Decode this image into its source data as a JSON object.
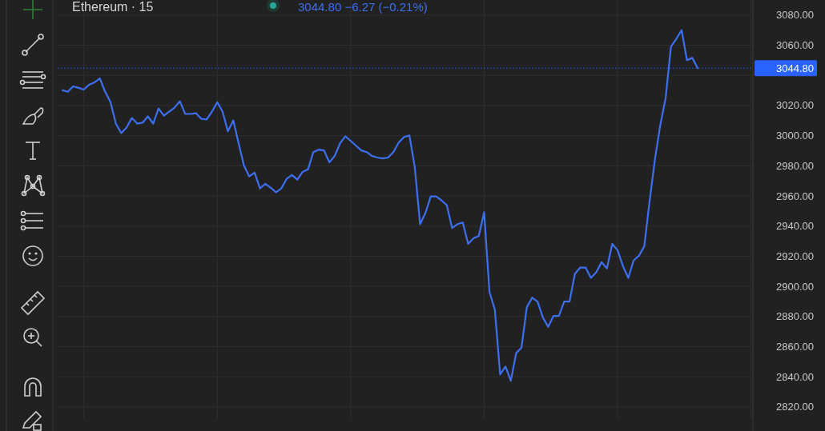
{
  "chart_data": {
    "type": "line",
    "title": "Ethereum · 15",
    "annotations": [
      "3044.80 −6.27 (−0.21%)"
    ],
    "categories": [
      null,
      null,
      null,
      null,
      null,
      null,
      null,
      null,
      null,
      null,
      null,
      null,
      null,
      null,
      null,
      null,
      null,
      null,
      null,
      null,
      null,
      null,
      null,
      null,
      null,
      null,
      null,
      null,
      null,
      null,
      null,
      null,
      null,
      null,
      null,
      null,
      null,
      null,
      null,
      null,
      null,
      null,
      null,
      null,
      null,
      null,
      null,
      null,
      null,
      null,
      null,
      null,
      null,
      null,
      null,
      null,
      null,
      null,
      null,
      null,
      null,
      null,
      null,
      null,
      null,
      null,
      null,
      null,
      null,
      null,
      null,
      null,
      null,
      null,
      null,
      null,
      null,
      null,
      null,
      null,
      null,
      null,
      null,
      null,
      null,
      null,
      null,
      null,
      null,
      null,
      null,
      null,
      null,
      null,
      null,
      null,
      null,
      null,
      null,
      null,
      null,
      null,
      null,
      null,
      null,
      null,
      null,
      null,
      null,
      null,
      null,
      null,
      null,
      null,
      null,
      null,
      null,
      null,
      null,
      null
    ],
    "series": [
      {
        "color": "#3d6ff0",
        "values": [
          3030.1,
          3029.1,
          3032.7,
          3031.7,
          3030.6,
          3033.8,
          3035.4,
          3038.0,
          3029.1,
          3022.2,
          3008.0,
          3001.7,
          3005.4,
          3011.7,
          3008.0,
          3008.6,
          3012.8,
          3008.0,
          3018.0,
          3013.3,
          3015.9,
          3018.6,
          3022.8,
          3014.4,
          3014.4,
          3014.9,
          3011.2,
          3010.7,
          3015.9,
          3022.2,
          3015.9,
          3002.8,
          3010.1,
          2994.9,
          2980.2,
          2972.9,
          2975.5,
          2965.0,
          2968.1,
          2965.5,
          2962.4,
          2965.0,
          2971.3,
          2973.9,
          2970.8,
          2976.0,
          2977.6,
          2989.1,
          2990.7,
          2990.2,
          2982.3,
          2986.5,
          2994.9,
          2999.6,
          2996.5,
          2993.3,
          2990.2,
          2989.1,
          2986.5,
          2985.5,
          2984.9,
          2985.5,
          2989.1,
          2995.4,
          2999.1,
          3000.2,
          2979.2,
          2941.3,
          2948.7,
          2959.7,
          2959.7,
          2957.1,
          2953.9,
          2938.7,
          2941.3,
          2942.4,
          2928.2,
          2931.9,
          2933.5,
          2949.2,
          2896.2,
          2884.6,
          2841.6,
          2846.8,
          2837.4,
          2855.7,
          2859.4,
          2886.2,
          2892.5,
          2889.9,
          2879.4,
          2873.1,
          2880.4,
          2880.4,
          2889.9,
          2889.9,
          2908.3,
          2912.5,
          2912.5,
          2905.6,
          2909.3,
          2916.1,
          2911.9,
          2928.2,
          2924.0,
          2913.5,
          2905.6,
          2917.2,
          2920.3,
          2926.6,
          2956.6,
          2984.4,
          3007.0,
          3024.9,
          3059.0,
          3064.2,
          3070.0,
          3050.1,
          3051.6,
          3044.8
        ]
      }
    ],
    "ylim": [
      2812,
      3090
    ],
    "yticks": [
      {
        "value": 2820,
        "label": "2820.00"
      },
      {
        "value": 2840,
        "label": "2840.00"
      },
      {
        "value": 2860,
        "label": "2860.00"
      },
      {
        "value": 2880,
        "label": "2880.00"
      },
      {
        "value": 2900,
        "label": "2900.00"
      },
      {
        "value": 2920,
        "label": "2920.00"
      },
      {
        "value": 2940,
        "label": "2940.00"
      },
      {
        "value": 2960,
        "label": "2960.00"
      },
      {
        "value": 2980,
        "label": "2980.00"
      },
      {
        "value": 3000,
        "label": "3000.00"
      },
      {
        "value": 3020,
        "label": "3020.00"
      },
      {
        "value": 3040,
        "label": null
      },
      {
        "value": 3060,
        "label": "3060.00"
      },
      {
        "value": 3080,
        "label": "3080.00"
      }
    ],
    "ref_lines": [
      {
        "axis": "y",
        "value": 3044.8,
        "label": "3044.80",
        "color": "#2962ff",
        "line_style": "dotted"
      }
    ],
    "grid": true,
    "tick_labels": "y",
    "marker": "none",
    "line_style": "solid"
  }
}
